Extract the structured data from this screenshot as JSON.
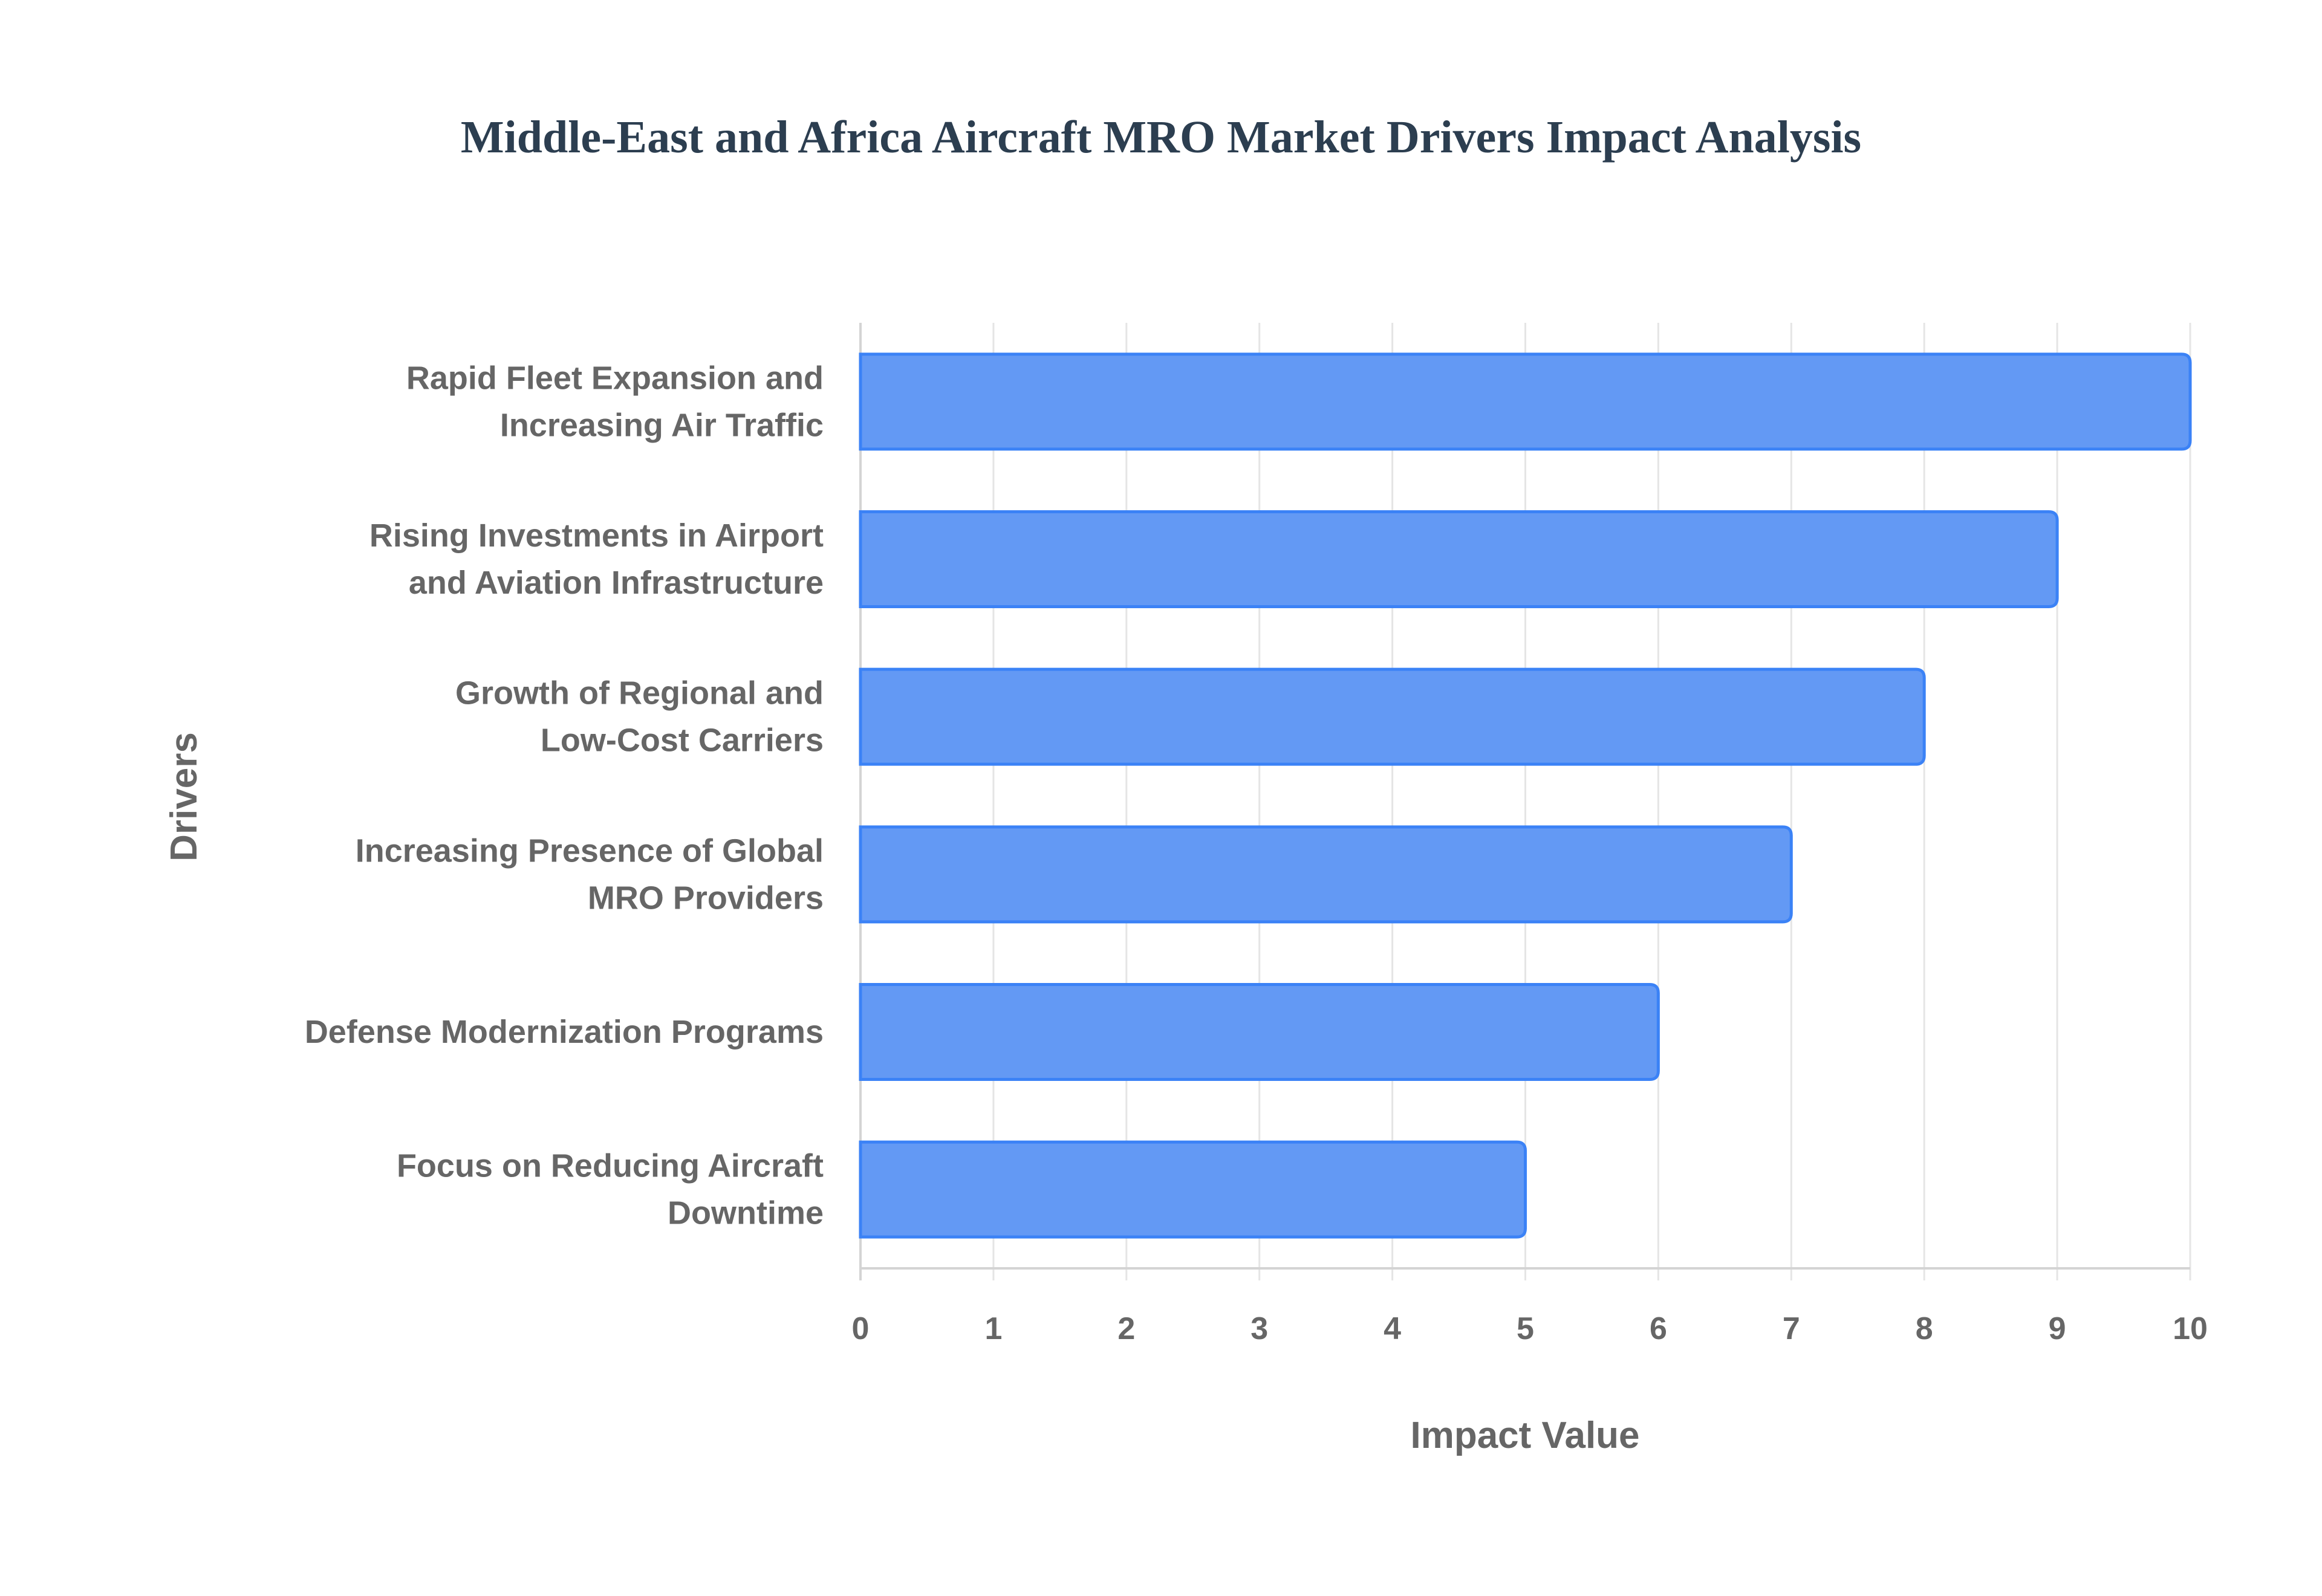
{
  "chart_data": {
    "type": "bar",
    "orientation": "horizontal",
    "title": "Middle-East and Africa Aircraft MRO Market Drivers Impact Analysis",
    "xlabel": "Impact Value",
    "ylabel": "Drivers",
    "xlim": [
      0,
      10
    ],
    "x_ticks": [
      "0",
      "1",
      "2",
      "3",
      "4",
      "5",
      "6",
      "7",
      "8",
      "9",
      "10"
    ],
    "grid": true,
    "categories": [
      [
        "Rapid Fleet Expansion and",
        "Increasing Air Traffic"
      ],
      [
        "Rising Investments in Airport",
        "and Aviation Infrastructure"
      ],
      [
        "Growth of Regional and",
        "Low-Cost Carriers"
      ],
      [
        "Increasing Presence of Global",
        "MRO Providers"
      ],
      [
        "Defense Modernization Programs"
      ],
      [
        "Focus on Reducing Aircraft",
        "Downtime"
      ]
    ],
    "values": [
      10,
      9,
      8,
      7,
      6,
      5
    ],
    "colors": {
      "bar_fill": "#6399f4",
      "bar_border": "#3b82f6",
      "grid": "#e5e5e5",
      "axis": "#d4d4d4"
    }
  }
}
